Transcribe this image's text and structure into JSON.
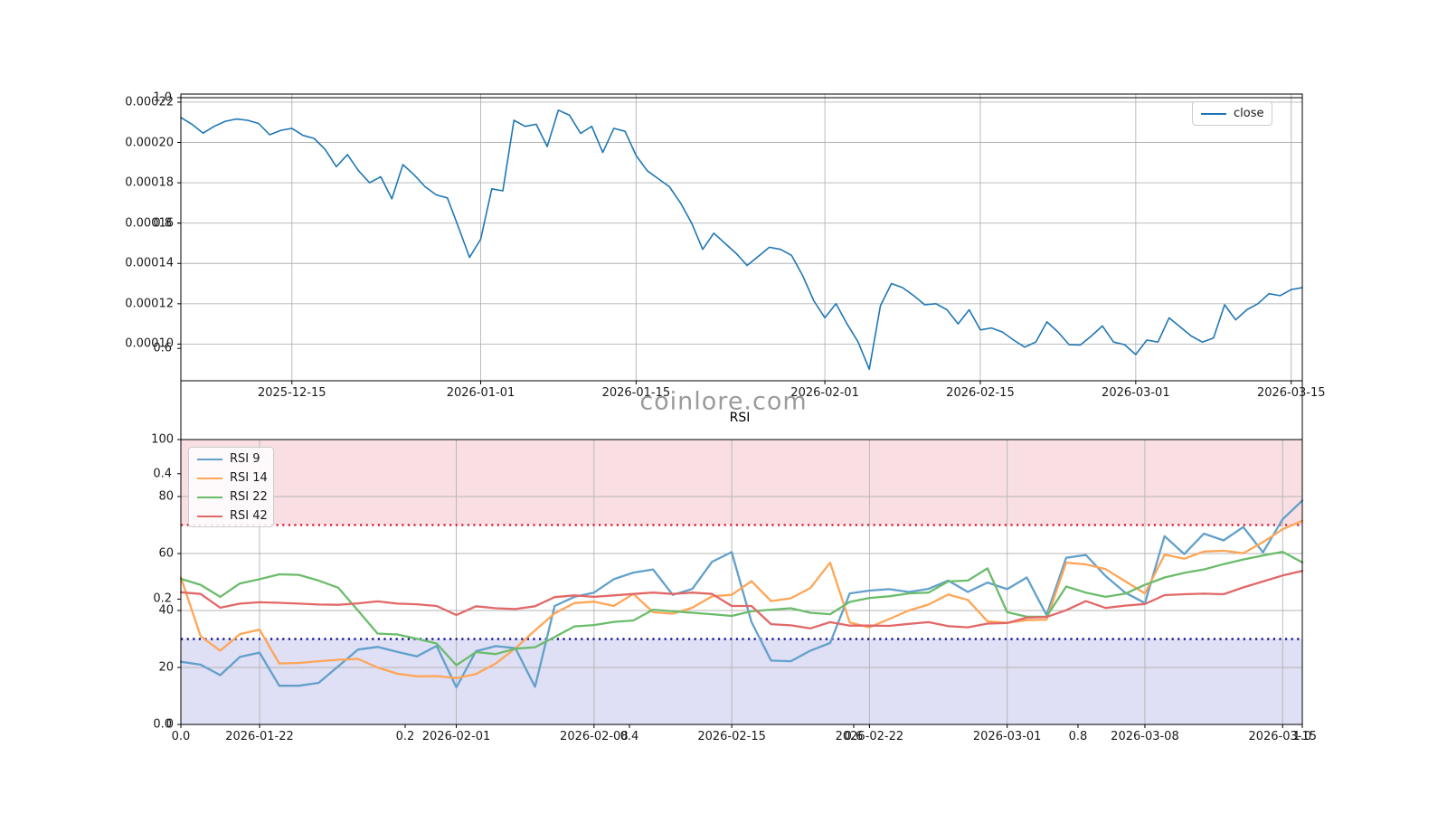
{
  "watermark": "coinlore.com",
  "colors": {
    "close_line": "#1f77b4",
    "rsi9": "#62a0ca",
    "rsi14": "#ffa556",
    "rsi22": "#6bbc6b",
    "rsi42": "#e26868",
    "overbought_band": "#f9dfe3",
    "oversold_band": "#dfdff5",
    "overbought_line": "#dd1122",
    "oversold_line": "#00008b",
    "grid": "#b4b4b4",
    "spine": "#000000",
    "watermark_color": "#9b9b9b"
  },
  "chart_data": [
    {
      "type": "line",
      "name": "price",
      "title": "",
      "legend": {
        "position": "upper right",
        "entries": [
          "close"
        ]
      },
      "x_start_date": "2025-12-05",
      "x_end_date": "2026-03-16",
      "grid": true,
      "ylim": [
        8.18e-05,
        0.000224
      ],
      "yticks": [
        {
          "label": "0.00022",
          "value": 0.00022
        },
        {
          "label": "0.00020",
          "value": 0.0002
        },
        {
          "label": "0.00018",
          "value": 0.00018
        },
        {
          "label": "0.00016",
          "value": 0.00016
        },
        {
          "label": "0.00014",
          "value": 0.00014
        },
        {
          "label": "0.00012",
          "value": 0.00012
        },
        {
          "label": "0.00010",
          "value": 0.0001
        }
      ],
      "xticks": [
        {
          "label": "2025-12-15",
          "i": 10
        },
        {
          "label": "2026-01-01",
          "i": 27
        },
        {
          "label": "2026-01-15",
          "i": 41
        },
        {
          "label": "2026-02-01",
          "i": 58
        },
        {
          "label": "2026-02-15",
          "i": 72
        },
        {
          "label": "2026-03-01",
          "i": 86
        },
        {
          "label": "2026-03-15",
          "i": 100
        }
      ],
      "series": [
        {
          "name": "close",
          "color": "#1f77b4",
          "width": 1.6,
          "values": [
            0.0002124,
            0.000209,
            0.0002046,
            0.000208,
            0.0002105,
            0.0002116,
            0.000211,
            0.0002094,
            0.0002038,
            0.000206,
            0.000207,
            0.0002035,
            0.000202,
            0.0001965,
            0.000188,
            0.000194,
            0.000186,
            0.00018,
            0.000183,
            0.000172,
            0.000189,
            0.000184,
            0.000178,
            0.000174,
            0.0001725,
            0.000158,
            0.000143,
            0.000152,
            0.000177,
            0.000176,
            0.000211,
            0.000208,
            0.000209,
            0.000198,
            0.000216,
            0.0002135,
            0.0002045,
            0.000208,
            0.000195,
            0.000207,
            0.0002055,
            0.0001935,
            0.000186,
            0.000182,
            0.000178,
            0.00017,
            0.00016,
            0.000147,
            0.000155,
            0.00015,
            0.000145,
            0.000139,
            0.0001435,
            0.000148,
            0.000147,
            0.000144,
            0.000134,
            0.0001215,
            0.000113,
            0.00012,
            0.00011,
            0.000101,
            8.75e-05,
            0.000119,
            0.00013,
            0.000128,
            0.000124,
            0.0001195,
            0.00012,
            0.000117,
            0.00011,
            0.000117,
            0.000107,
            0.000108,
            0.000106,
            0.000102,
            9.85e-05,
            0.000101,
            0.000111,
            0.000106,
            9.97e-05,
            9.95e-05,
            0.000104,
            0.000109,
            0.000101,
            9.97e-05,
            9.48e-05,
            0.000102,
            0.000101,
            0.000113,
            0.0001085,
            0.000104,
            0.000101,
            0.000103,
            0.0001195,
            0.000112,
            0.000117,
            0.00012,
            0.000125,
            0.000124,
            0.000127,
            0.000128
          ]
        }
      ]
    },
    {
      "type": "line",
      "name": "rsi",
      "title": "RSI",
      "legend": {
        "position": "upper left",
        "entries": [
          "RSI 9",
          "RSI 14",
          "RSI 22",
          "RSI 42"
        ]
      },
      "x_start_date": "2026-01-18",
      "x_end_date": "2026-03-16",
      "grid": true,
      "ylim": [
        0,
        100
      ],
      "overbought_level": 70,
      "oversold_level": 30,
      "bands": [
        {
          "from": 70,
          "to": 100,
          "color": "#f9dfe3"
        },
        {
          "from": 0,
          "to": 30,
          "color": "#dfdff5"
        }
      ],
      "hlines": [
        {
          "y": 70,
          "color": "#dd1122",
          "style": "dotted"
        },
        {
          "y": 30,
          "color": "#00008b",
          "style": "dotted"
        }
      ],
      "yticks": [
        {
          "label": "100",
          "value": 100
        },
        {
          "label": "80",
          "value": 80
        },
        {
          "label": "60",
          "value": 60
        },
        {
          "label": "40",
          "value": 40
        },
        {
          "label": "20",
          "value": 20
        },
        {
          "label": "0",
          "value": 0
        }
      ],
      "xticks": [
        {
          "label": "2026-01-22",
          "i": 4
        },
        {
          "label": "2026-02-01",
          "i": 14
        },
        {
          "label": "2026-02-08",
          "i": 21
        },
        {
          "label": "2026-02-15",
          "i": 28
        },
        {
          "label": "2026-02-22",
          "i": 35
        },
        {
          "label": "2026-03-01",
          "i": 42
        },
        {
          "label": "2026-03-08",
          "i": 49
        },
        {
          "label": "2026-03-15",
          "i": 56
        }
      ],
      "series": [
        {
          "name": "RSI 9",
          "color": "#62a0ca",
          "width": 2.3,
          "values": [
            22,
            21,
            17.3,
            23.7,
            25.2,
            13.6,
            13.6,
            14.6,
            20.4,
            26.3,
            27.2,
            25.5,
            23.9,
            27.6,
            13,
            25.7,
            27.5,
            26.8,
            13.2,
            41.6,
            44.8,
            46.3,
            51,
            53.3,
            54.4,
            45.5,
            47.6,
            57.1,
            60.5,
            36,
            22.4,
            22.2,
            25.9,
            28.6,
            46,
            47,
            47.5,
            46.5,
            47.6,
            50.5,
            46.5,
            49.8,
            47.5,
            51.6,
            38.4,
            58.5,
            59.5,
            52.1,
            46.3,
            42.6,
            66.1,
            59.8,
            67,
            64.6,
            69.3,
            60.4,
            72,
            78.6
          ]
        },
        {
          "name": "RSI 14",
          "color": "#ffa556",
          "width": 2.3,
          "values": [
            51.6,
            31,
            25.9,
            31.7,
            33.3,
            21.4,
            21.6,
            22.2,
            22.7,
            23,
            20,
            17.8,
            16.9,
            17,
            16.3,
            17.7,
            21.4,
            26.7,
            33,
            39,
            42.6,
            43.1,
            41.6,
            45.8,
            39.4,
            38.9,
            41,
            45,
            45.5,
            50.3,
            43.3,
            44.3,
            47.9,
            56.8,
            35.8,
            34.1,
            37,
            40,
            42.1,
            45.6,
            43.7,
            36.2,
            35.7,
            36.6,
            36.8,
            56.8,
            56.2,
            54.5,
            50.3,
            46,
            59.6,
            58.2,
            60.7,
            61,
            60.1,
            64,
            68.5,
            71.5
          ]
        },
        {
          "name": "RSI 22",
          "color": "#6bbc6b",
          "width": 2.3,
          "values": [
            51.1,
            49,
            44.8,
            49.5,
            51,
            52.7,
            52.5,
            50.5,
            48,
            40,
            31.9,
            31.6,
            30.1,
            28.4,
            20.8,
            25.4,
            24.7,
            26.6,
            27.1,
            30.7,
            34.4,
            34.9,
            36,
            36.5,
            40.3,
            39.7,
            39.2,
            38.7,
            38.1,
            39.7,
            40.3,
            40.8,
            39.2,
            38.7,
            43,
            44.4,
            45,
            46,
            46.3,
            50.2,
            50.5,
            54.8,
            39.4,
            37.8,
            37.8,
            48.4,
            46.3,
            44.8,
            45.9,
            49,
            51.6,
            53.2,
            54.4,
            56.3,
            57.9,
            59.3,
            60.6,
            56.9
          ]
        },
        {
          "name": "RSI 42",
          "color": "#e26868",
          "width": 2.3,
          "values": [
            46.4,
            45.8,
            41,
            42.4,
            42.9,
            42.7,
            42.4,
            42.1,
            42,
            42.5,
            43.2,
            42.4,
            42.2,
            41.6,
            38.4,
            41.5,
            40.8,
            40.5,
            41.5,
            44.7,
            45.3,
            44.8,
            45.3,
            45.8,
            46.3,
            45.8,
            46.3,
            45.8,
            41.6,
            41.6,
            35.2,
            34.8,
            33.7,
            35.9,
            34.7,
            34.7,
            34.6,
            35.3,
            35.9,
            34.5,
            34.1,
            35.4,
            35.6,
            37.5,
            37.7,
            40.1,
            43.3,
            40.9,
            41.7,
            42.3,
            45.4,
            45.7,
            45.9,
            45.7,
            48.1,
            50.2,
            52.3,
            53.9
          ]
        }
      ]
    }
  ],
  "hidden_axes": {
    "xtick_labels": [
      "0.0",
      "0.2",
      "0.4",
      "0.6",
      "0.8",
      "1.0"
    ],
    "ytick_labels": [
      "1.0",
      "0.8",
      "0.6",
      "0.4",
      "0.2",
      "0.0"
    ]
  }
}
